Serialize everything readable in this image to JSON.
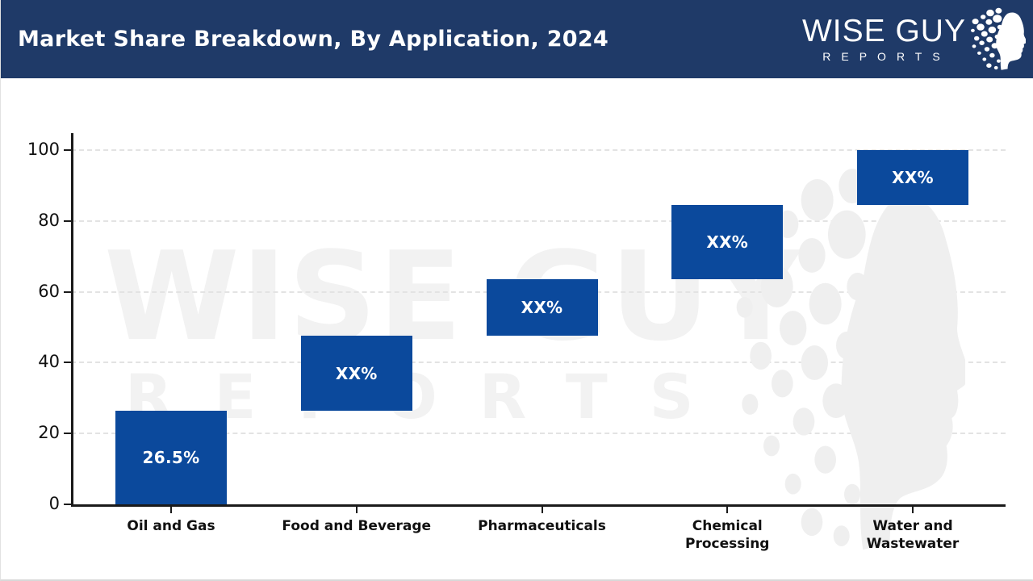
{
  "header": {
    "title": "Market Share Breakdown, By Application, 2024",
    "logo": {
      "line1": "WISE GUY",
      "line2": "REPORTS",
      "face_icon": "dotted-head-profile"
    }
  },
  "watermark": {
    "line1": "WISE GUY",
    "line2": "REPORTS",
    "face_icon": "dotted-head-profile"
  },
  "colors": {
    "header_bg": "#1f3a68",
    "bar": "#0b499c",
    "grid": "#e3e3e3",
    "axis": "#1a1a1a",
    "bar_label_text": "#ffffff",
    "watermark": "#f1f1f1"
  },
  "chart_data": {
    "type": "bar",
    "subtype": "waterfall",
    "title": "Market Share Breakdown, By Application, 2024",
    "xlabel": "",
    "ylabel": "",
    "categories": [
      "Oil and Gas",
      "Food and Beverage",
      "Pharmaceuticals",
      "Chemical\nProcessing",
      "Water and\nWastewater"
    ],
    "segments": [
      {
        "category": "Oil and Gas",
        "start": 0,
        "end": 26.5,
        "label": "26.5%"
      },
      {
        "category": "Food and Beverage",
        "start": 26.5,
        "end": 47.5,
        "label": "XX%"
      },
      {
        "category": "Pharmaceuticals",
        "start": 47.5,
        "end": 63.5,
        "label": "XX%"
      },
      {
        "category": "Chemical Processing",
        "start": 63.5,
        "end": 84.5,
        "label": "XX%"
      },
      {
        "category": "Water and Wastewater",
        "start": 84.5,
        "end": 100,
        "label": "XX%"
      }
    ],
    "yticks": [
      0,
      20,
      40,
      60,
      80,
      100
    ],
    "ylim": [
      0,
      105
    ],
    "grid": "horizontal-dashed",
    "legend": "none",
    "bar_color": "#0b499c"
  }
}
